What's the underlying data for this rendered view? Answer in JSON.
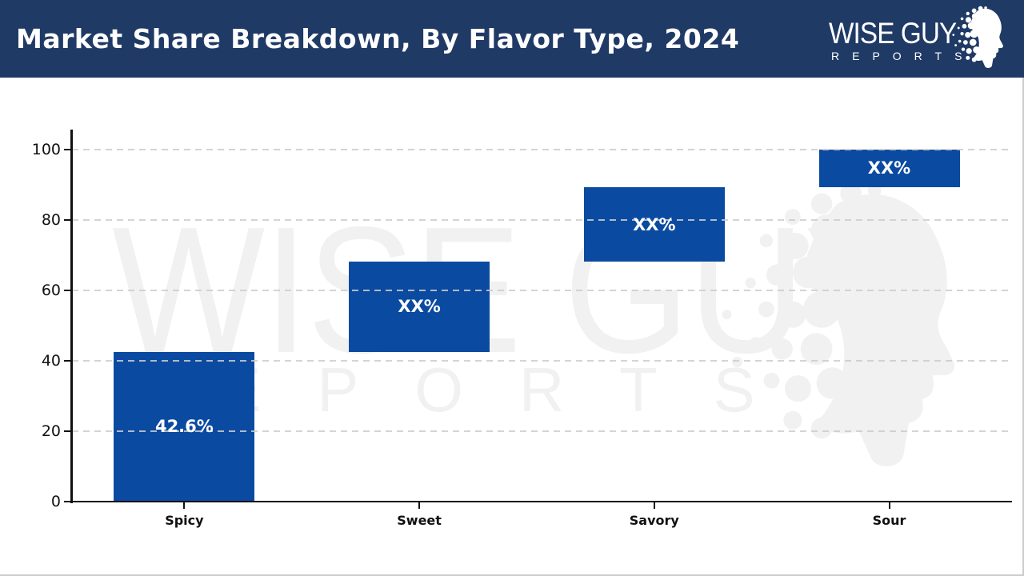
{
  "header": {
    "title": "Market Share Breakdown, By Flavor Type, 2024"
  },
  "logo": {
    "line1": "WISE GUY",
    "line2": "REPORTS"
  },
  "chart_data": {
    "type": "bar",
    "subtype": "waterfall",
    "title": "Market Share Breakdown, By Flavor Type, 2024",
    "categories": [
      "Spicy",
      "Sweet",
      "Savory",
      "Sour"
    ],
    "segments": [
      {
        "category": "Spicy",
        "start": 0,
        "end": 42.6,
        "label": "42.6%"
      },
      {
        "category": "Sweet",
        "start": 42.6,
        "end": 68.1,
        "label": "XX%"
      },
      {
        "category": "Savory",
        "start": 68.1,
        "end": 89.4,
        "label": "XX%"
      },
      {
        "category": "Sour",
        "start": 89.4,
        "end": 100,
        "label": "XX%"
      }
    ],
    "yticks": [
      0,
      20,
      40,
      60,
      80,
      100
    ],
    "ylim": [
      0,
      105.7
    ],
    "xlabel": "",
    "ylabel": "",
    "grid": "dashed-horizontal",
    "legend": null
  },
  "colors": {
    "header_bg": "#203a66",
    "bar": "#0b4aa1",
    "bar_label": "#ffffff",
    "grid": "#d3d3d3",
    "axis": "#111111",
    "watermark": "#f1f1f2",
    "page_bg": "#ffffff"
  }
}
